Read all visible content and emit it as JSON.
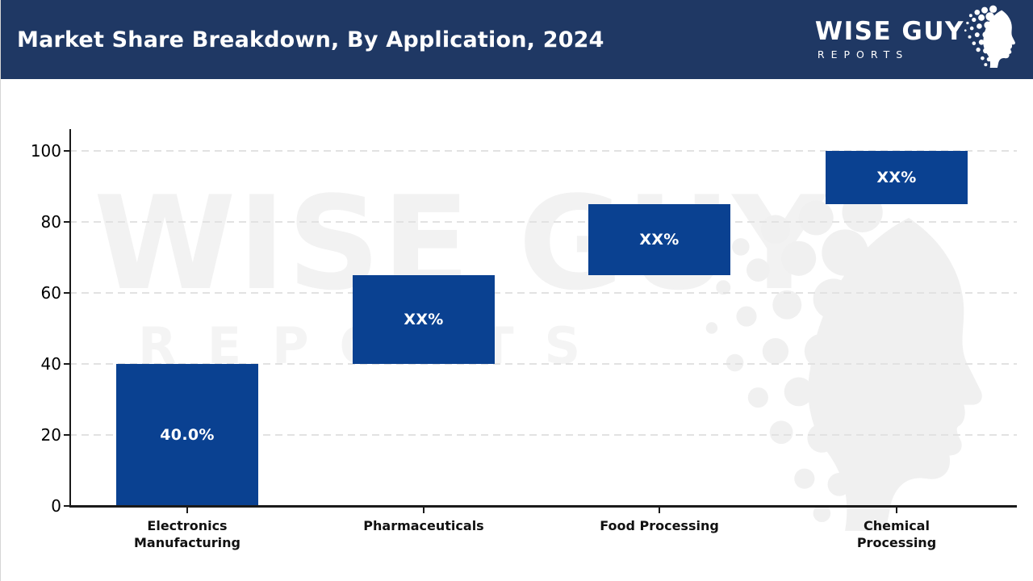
{
  "header": {
    "title": "Market Share Breakdown, By Application, 2024",
    "logo": {
      "line1": "WISE GUY",
      "line2": "REPORTS"
    }
  },
  "watermark": {
    "line1": "WISE GUY",
    "line2": "REPORTS"
  },
  "chart_data": {
    "type": "bar",
    "subtype": "waterfall",
    "title": "Market Share Breakdown, By Application, 2024",
    "categories": [
      "Electronics\nManufacturing",
      "Pharmaceuticals",
      "Food Processing",
      "Chemical\nProcessing"
    ],
    "bars": [
      {
        "category": "Electronics Manufacturing",
        "start": 0,
        "end": 40,
        "value_label": "40.0%"
      },
      {
        "category": "Pharmaceuticals",
        "start": 40,
        "end": 65,
        "value_label": "XX%"
      },
      {
        "category": "Food Processing",
        "start": 65,
        "end": 85,
        "value_label": "XX%"
      },
      {
        "category": "Chemical Processing",
        "start": 85,
        "end": 100,
        "value_label": "XX%"
      }
    ],
    "xlabel": "",
    "ylabel": "",
    "yticks": [
      0,
      20,
      40,
      60,
      80,
      100
    ],
    "ylim": [
      0,
      105
    ],
    "grid": true,
    "legend": false,
    "bar_color": "#0a4191",
    "axis_color": "#1a1a1a",
    "gridline_color": "#e2e2e2",
    "header_color": "#1f3864"
  }
}
